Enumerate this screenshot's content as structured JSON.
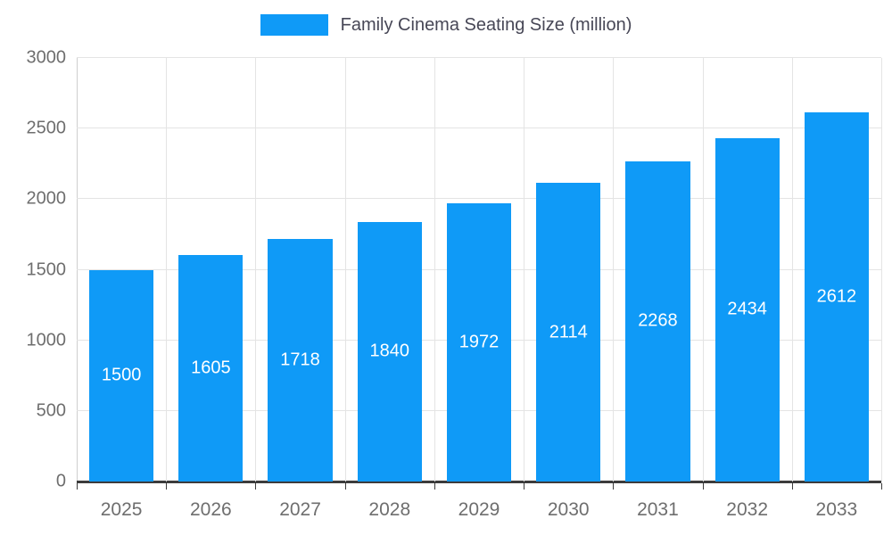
{
  "chart_data": {
    "type": "bar",
    "title": "Family Cinema Seating Size (million)",
    "categories": [
      "2025",
      "2026",
      "2027",
      "2028",
      "2029",
      "2030",
      "2031",
      "2032",
      "2033"
    ],
    "values": [
      1500,
      1605,
      1718,
      1840,
      1972,
      2114,
      2268,
      2434,
      2612
    ],
    "xlabel": "",
    "ylabel": "",
    "ylim": [
      0,
      3000
    ],
    "ytick_step": 500,
    "grid": true,
    "legend_position": "top",
    "value_labels": "inside-center",
    "colors": {
      "bar": "#0F9AF7",
      "legend_text": "#474756",
      "axis_text": "#6E6E6E",
      "grid_line": "#E4E4E4",
      "axis_line_left": "#CFCFCF",
      "axis_line_bottom": "#3C3C3C",
      "value_label": "#FFFFFF",
      "background": "#FFFFFF"
    }
  }
}
